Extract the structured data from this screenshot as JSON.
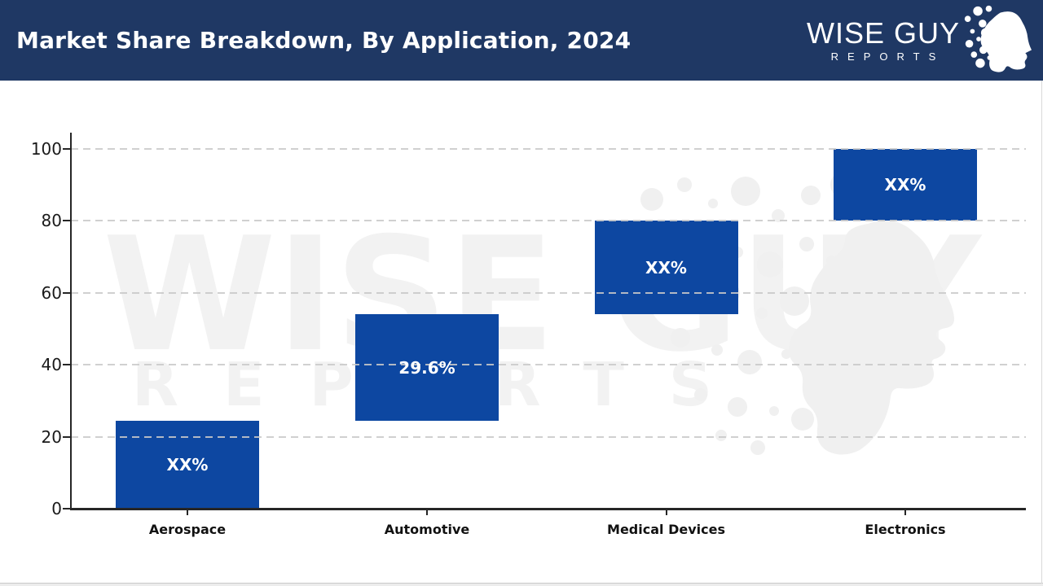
{
  "header": {
    "title": "Market Share Breakdown, By Application, 2024",
    "logo": {
      "brand": "WISE GUY",
      "tagline": "REPORTS"
    }
  },
  "watermark": {
    "brand": "WISE GUY",
    "tagline": "REPORTS"
  },
  "colors": {
    "header_bg": "#1f3864",
    "bar": "#0d47a1",
    "axis": "#262626",
    "gridline": "#c9c9c9",
    "watermark": "#f2f2f2"
  },
  "chart_data": {
    "type": "bar",
    "subtype": "waterfall",
    "title": "Market Share Breakdown, By Application, 2024",
    "categories": [
      "Aerospace",
      "Automotive",
      "Medical Devices",
      "Electronics"
    ],
    "bars": [
      {
        "category": "Aerospace",
        "base": 0,
        "top": 24.4,
        "value": 24.4,
        "value_label": "XX%"
      },
      {
        "category": "Automotive",
        "base": 24.4,
        "top": 54.0,
        "value": 29.6,
        "value_label": "29.6%"
      },
      {
        "category": "Medical Devices",
        "base": 54.0,
        "top": 80.0,
        "value": 26.0,
        "value_label": "XX%"
      },
      {
        "category": "Electronics",
        "base": 80.0,
        "top": 100.0,
        "value": 20.0,
        "value_label": "XX%"
      }
    ],
    "xlabel": "",
    "ylabel": "",
    "yticks": [
      0,
      20,
      40,
      60,
      80,
      100
    ],
    "ylim": [
      0,
      105
    ],
    "grid": "dashed-horizontal-on-top",
    "legend": "none",
    "bar_color": "#0d47a1"
  }
}
